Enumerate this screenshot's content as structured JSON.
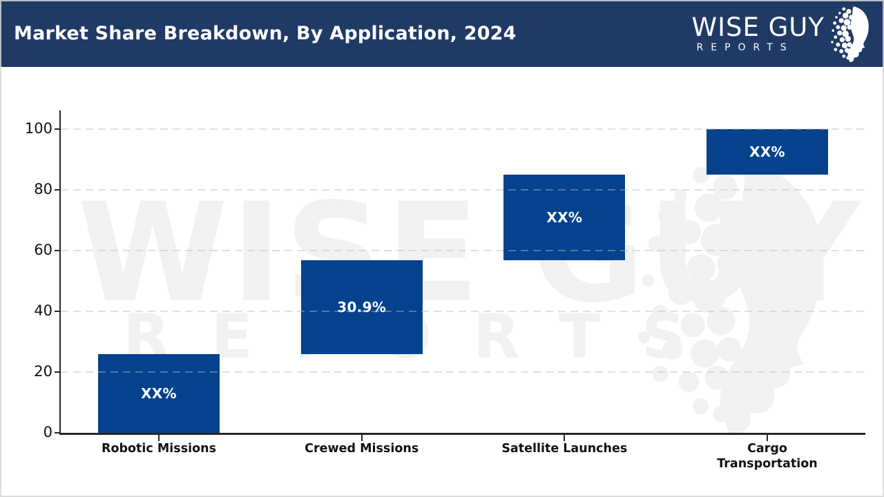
{
  "header": {
    "title": "Market Share Breakdown, By Application, 2024",
    "brand": {
      "line1": "WISE GUY",
      "line2": "REPORTS"
    }
  },
  "watermark": {
    "line1": "WISE GUY",
    "line2": "REPORTS"
  },
  "chart_data": {
    "type": "bar",
    "subtype": "waterfall",
    "title": "Market Share Breakdown, By Application, 2024",
    "categories": [
      "Robotic Missions",
      "Crewed Missions",
      "Satellite Launches",
      "Cargo Transportation"
    ],
    "bars": [
      {
        "category": "Robotic Missions",
        "tick_label": "Robotic Missions",
        "value_label": "XX%",
        "start": 0,
        "end": 26.0
      },
      {
        "category": "Crewed Missions",
        "tick_label": "Crewed Missions",
        "value_label": "30.9%",
        "start": 26.0,
        "end": 56.9
      },
      {
        "category": "Satellite Launches",
        "tick_label": "Satellite Launches",
        "value_label": "XX%",
        "start": 56.9,
        "end": 85.0
      },
      {
        "category": "Cargo Transportation",
        "tick_label": "Cargo\nTransportation",
        "value_label": "XX%",
        "start": 85.0,
        "end": 100.0
      }
    ],
    "xlabel": "",
    "ylabel": "",
    "ylim": [
      0,
      100
    ],
    "yticks": [
      0,
      20,
      40,
      60,
      80,
      100
    ],
    "grid": "horizontal-dashed",
    "legend": "none",
    "colors": {
      "bar": "#04428E",
      "value_label": "#FFFFFF",
      "grid": "#E4E4E4",
      "axis": "#262626",
      "tick_label": "#111111",
      "header_bg": "#203A66",
      "header_text": "#FFFFFF",
      "watermark": "#F1F1F1"
    }
  }
}
